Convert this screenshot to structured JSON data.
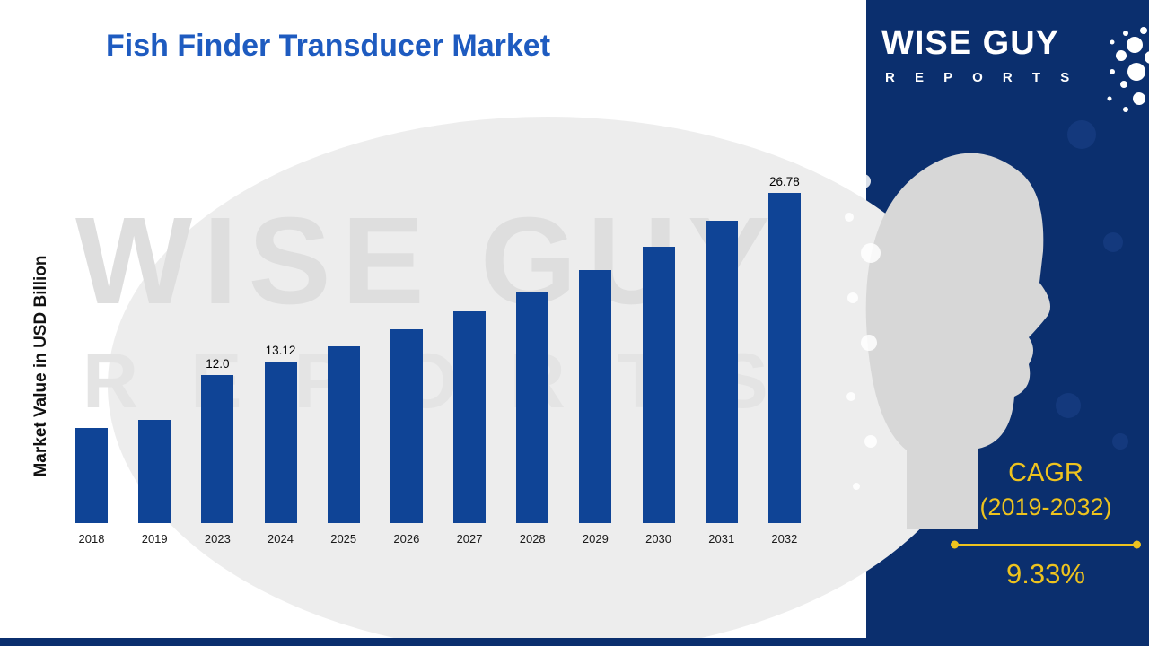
{
  "chart_data": {
    "type": "bar",
    "title": "Fish Finder Transducer Market",
    "ylabel": "Market Value in USD Billion",
    "categories": [
      "2018",
      "2019",
      "2023",
      "2024",
      "2025",
      "2026",
      "2027",
      "2028",
      "2029",
      "2030",
      "2031",
      "2032"
    ],
    "values": [
      7.7,
      8.39,
      12.0,
      13.12,
      14.34,
      15.68,
      17.14,
      18.74,
      20.49,
      22.4,
      24.49,
      26.78
    ],
    "bar_value_labels": [
      "",
      "",
      "12.0",
      "13.12",
      "",
      "",
      "",
      "",
      "",
      "",
      "",
      "26.78"
    ],
    "ylim": [
      0,
      28
    ],
    "grid": false,
    "legend": false,
    "bar_color": "#0f4496",
    "title_color": "#1e5bc0"
  },
  "watermark": {
    "line1": "WISE GUY",
    "line2": "REPORTS"
  },
  "brand": {
    "line1": "WISE GUY",
    "line2": "R E P O R T S",
    "panel_color": "#0b2f6e",
    "accent_color": "#eec31e"
  },
  "cagr": {
    "label": "CAGR",
    "range": "(2019-2032)",
    "value": "9.33%"
  }
}
